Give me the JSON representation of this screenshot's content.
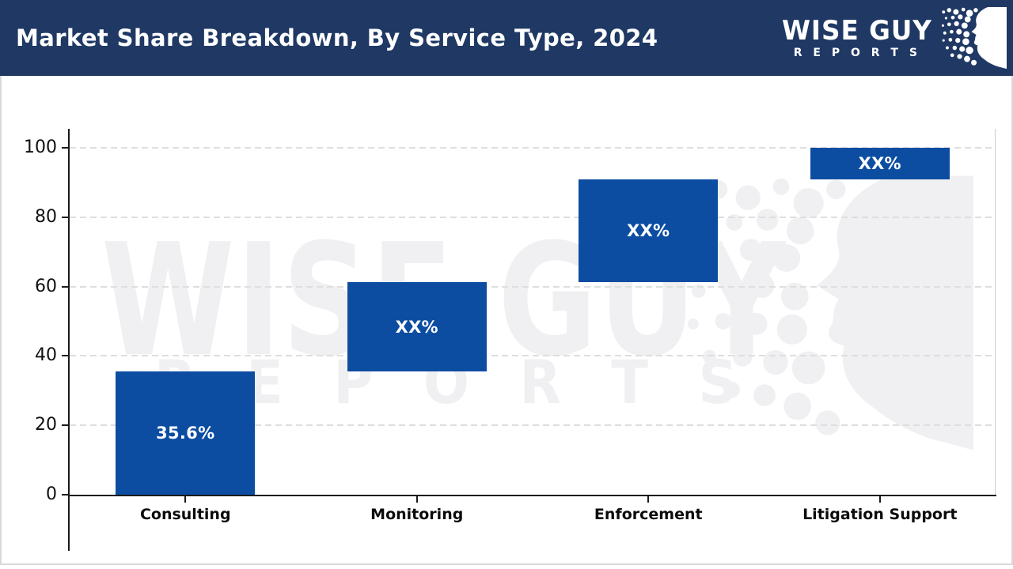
{
  "header": {
    "title": "Market Share Breakdown, By Service Type, 2024",
    "logo": {
      "brand_line1": "WISE GUY",
      "brand_line2": "R E P O R T S"
    }
  },
  "watermark": {
    "line1": "WISE GUY",
    "line2": "R E P O R T S"
  },
  "colors": {
    "page_bg": "#FFFFFF",
    "header_bg": "#1F3864",
    "bar_fill": "#0C4DA2",
    "bar_label": "#FFFFFF",
    "grid_line": "#DEDEDE",
    "axis_line": "#1A1A1A",
    "right_spine": "#CCCCCC",
    "tick_text": "#111111",
    "watermark": "#F0F0F2"
  },
  "chart_data": {
    "type": "bar",
    "subtype": "floating-segment-waterfall",
    "title": "Market Share Breakdown, By Service Type, 2024",
    "categories": [
      "Consulting",
      "Monitoring",
      "Enforcement",
      "Litigation Support"
    ],
    "segments": [
      {
        "category": "Consulting",
        "start": 0,
        "end": 35.6,
        "label": "35.6%"
      },
      {
        "category": "Monitoring",
        "start": 35.6,
        "end": 61.2,
        "label": "XX%"
      },
      {
        "category": "Enforcement",
        "start": 61.2,
        "end": 91.0,
        "label": "XX%"
      },
      {
        "category": "Litigation Support",
        "start": 91.0,
        "end": 100,
        "label": "XX%"
      }
    ],
    "values_shown": [
      "35.6%",
      "XX%",
      "XX%",
      "XX%"
    ],
    "xlabel": "",
    "ylabel": "",
    "yticks": [
      0,
      20,
      40,
      60,
      80,
      100
    ],
    "ylim": [
      0,
      105
    ],
    "grid": "horizontal-dashed",
    "legend": "none"
  }
}
